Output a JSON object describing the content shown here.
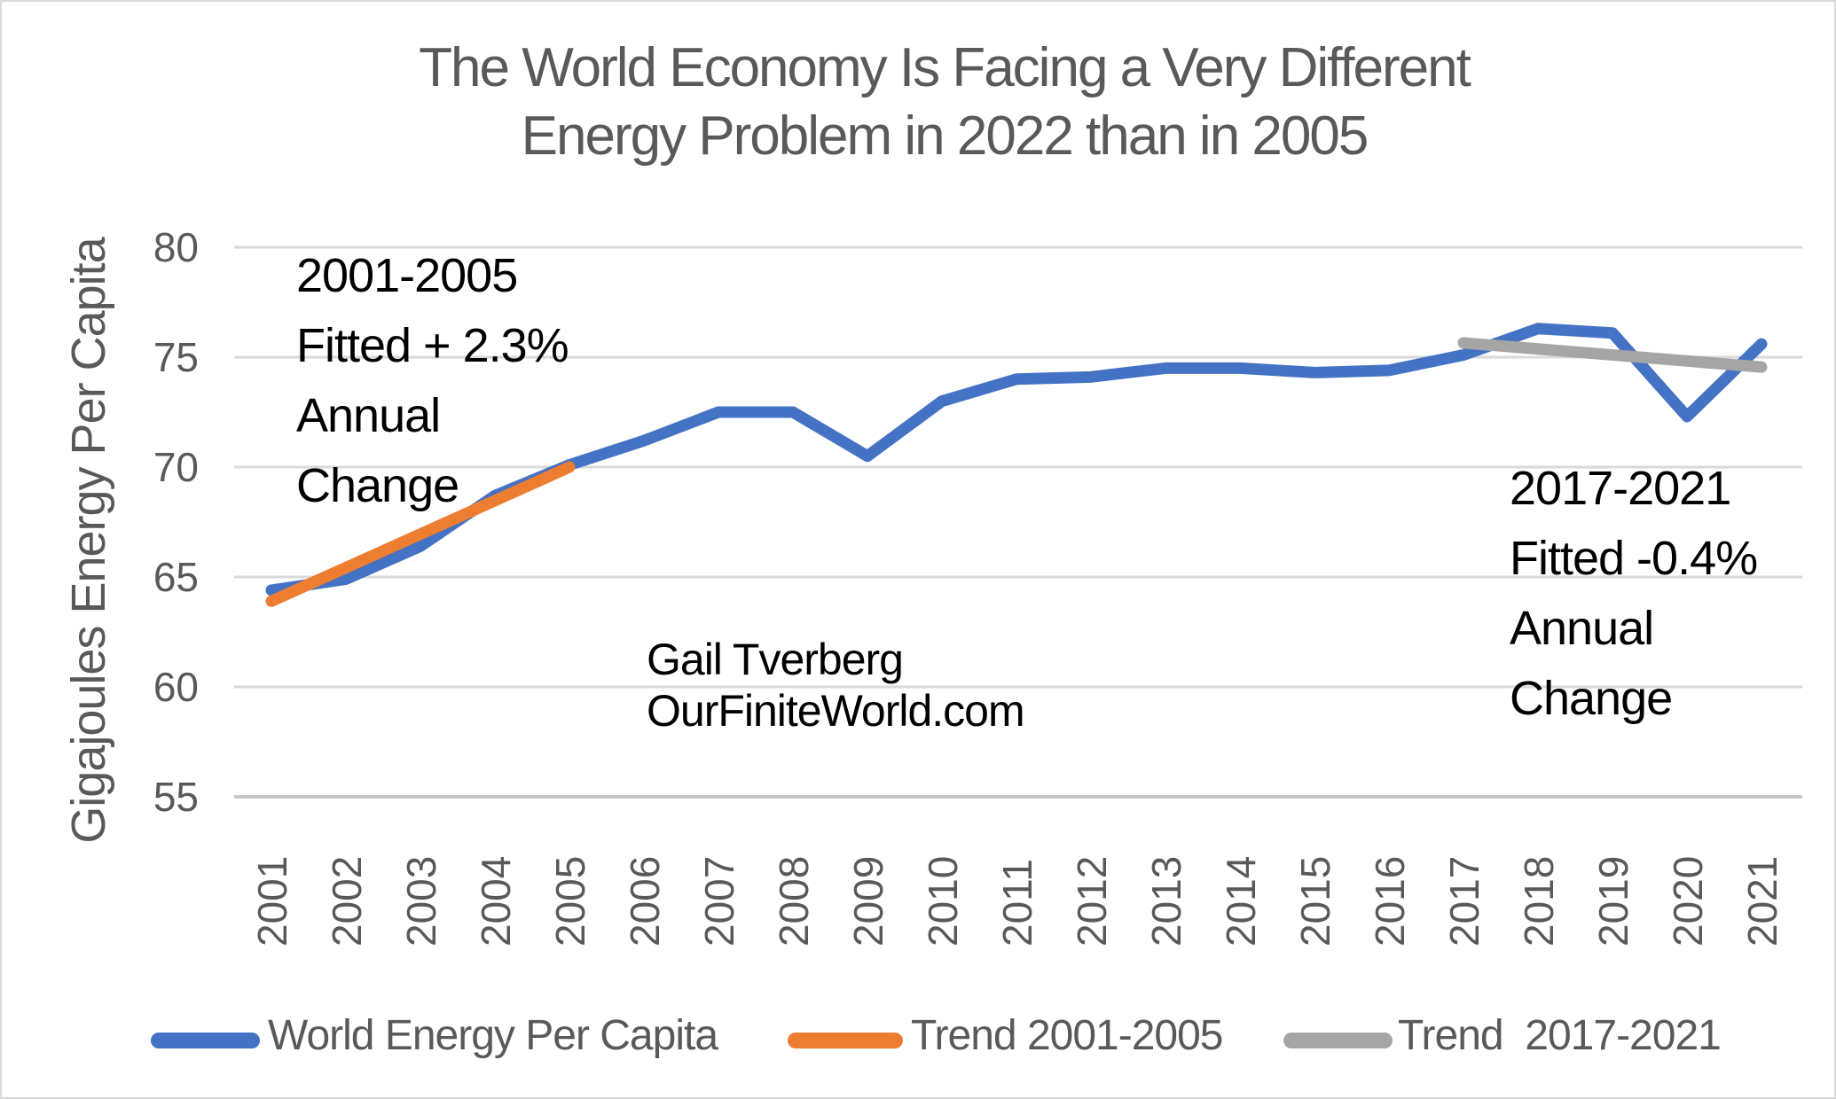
{
  "title": {
    "line1": "The World Economy Is Facing a Very Different",
    "line2": "Energy Problem in 2022 than in 2005"
  },
  "y_axis": {
    "title": "Gigajoules Energy Per Capita",
    "ticks": [
      80,
      75,
      70,
      65,
      60,
      55
    ]
  },
  "x_axis": {
    "years": [
      "2001",
      "2002",
      "2003",
      "2004",
      "2005",
      "2006",
      "2007",
      "2008",
      "2009",
      "2010",
      "2011",
      "2012",
      "2013",
      "2014",
      "2015",
      "2016",
      "2017",
      "2018",
      "2019",
      "2020",
      "2021"
    ]
  },
  "annotations": {
    "left_lines": [
      "2001-2005",
      "Fitted + 2.3%",
      "Annual",
      "Change"
    ],
    "right_lines": [
      "2017-2021",
      "Fitted -0.4%",
      "Annual",
      "Change"
    ],
    "watermark_lines": [
      "Gail Tverberg",
      "OurFiniteWorld.com"
    ]
  },
  "legend": [
    {
      "label": "World Energy Per Capita",
      "color": "#4472C4"
    },
    {
      "label": "Trend 2001-2005",
      "color": "#ED7D31"
    },
    {
      "label": "Trend  2017-2021",
      "color": "#A5A5A5"
    }
  ],
  "colors": {
    "series_blue": "#4472C4",
    "trend_orange": "#ED7D31",
    "trend_gray": "#A5A5A5",
    "gridline": "#D9D9D9",
    "axis_line": "#C6C6C6",
    "text_gray": "#595959",
    "text_black": "#000000",
    "background": "#FFFFFF"
  },
  "chart_data": {
    "type": "line",
    "title": "The World Economy Is Facing a Very Different Energy Problem in 2022 than in 2005",
    "xlabel": "",
    "ylabel": "Gigajoules Energy Per Capita",
    "ylim": [
      55,
      80
    ],
    "y_tick_step": 5,
    "grid": "horizontal",
    "legend_position": "bottom",
    "x": [
      2001,
      2002,
      2003,
      2004,
      2005,
      2006,
      2007,
      2008,
      2009,
      2010,
      2011,
      2012,
      2013,
      2014,
      2015,
      2016,
      2017,
      2018,
      2019,
      2020,
      2021
    ],
    "series": [
      {
        "name": "World Energy Per Capita",
        "color": "#4472C4",
        "x": [
          2001,
          2002,
          2003,
          2004,
          2005,
          2006,
          2007,
          2008,
          2009,
          2010,
          2011,
          2012,
          2013,
          2014,
          2015,
          2016,
          2017,
          2018,
          2019,
          2020,
          2021
        ],
        "values": [
          64.4,
          64.9,
          66.4,
          68.7,
          70.1,
          71.2,
          72.5,
          72.5,
          70.5,
          73.0,
          74.0,
          74.1,
          74.5,
          74.5,
          74.3,
          74.4,
          75.1,
          76.3,
          76.1,
          72.3,
          75.6
        ]
      },
      {
        "name": "Trend 2001-2005",
        "color": "#ED7D31",
        "x": [
          2001,
          2005
        ],
        "values": [
          63.9,
          70.0
        ],
        "note": "Fitted + 2.3% Annual Change"
      },
      {
        "name": "Trend  2017-2021",
        "color": "#A5A5A5",
        "x": [
          2017,
          2021
        ],
        "values": [
          75.65,
          74.55
        ],
        "note": "Fitted -0.4% Annual Change"
      }
    ]
  }
}
